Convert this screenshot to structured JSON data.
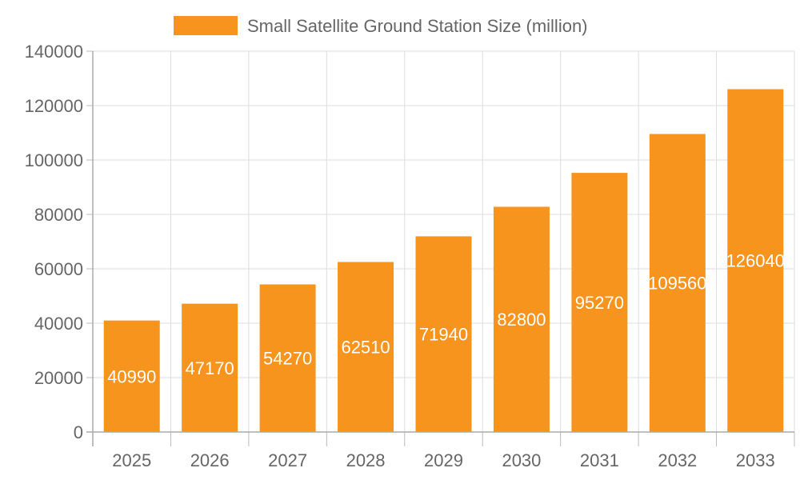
{
  "chart_data": {
    "type": "bar",
    "title": "",
    "xlabel": "",
    "ylabel": "",
    "categories": [
      "2025",
      "2026",
      "2027",
      "2028",
      "2029",
      "2030",
      "2031",
      "2032",
      "2033"
    ],
    "series": [
      {
        "name": "Small Satellite Ground Station Size (million)",
        "values": [
          40990,
          47170,
          54270,
          62510,
          71940,
          82800,
          95270,
          109560,
          126040
        ],
        "color": "#f7941d"
      }
    ],
    "ylim": [
      0,
      140000
    ],
    "yticks": [
      0,
      20000,
      40000,
      60000,
      80000,
      100000,
      120000,
      140000
    ],
    "grid": true,
    "legend": "top-center",
    "data_labels": true
  }
}
